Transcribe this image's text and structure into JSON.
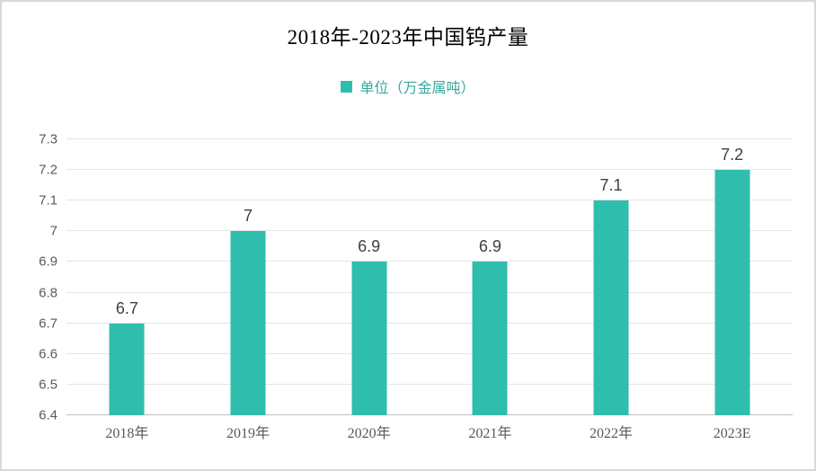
{
  "chart_data": {
    "type": "bar",
    "title": "2018年-2023年中国钨产量",
    "legend": [
      "单位（万金属吨）"
    ],
    "legend_position": "top",
    "categories": [
      "2018年",
      "2019年",
      "2020年",
      "2021年",
      "2022年",
      "2023E"
    ],
    "values": [
      6.7,
      7,
      6.9,
      6.9,
      7.1,
      7.2
    ],
    "value_labels": [
      "6.7",
      "7",
      "6.9",
      "6.9",
      "7.1",
      "7.2"
    ],
    "xlabel": "",
    "ylabel": "",
    "ylim": [
      6.4,
      7.3
    ],
    "ytick_step": 0.1,
    "yticks": [
      "6.4",
      "6.5",
      "6.6",
      "6.7",
      "6.8",
      "6.9",
      "7",
      "7.1",
      "7.2",
      "7.3"
    ],
    "grid": true,
    "colors": {
      "bar": "#2FBEAD",
      "legend_text": "#36A89E",
      "gridline": "#e4e4e4",
      "axis_line": "#bfbfbf",
      "value_label": "#404040",
      "tick_label": "#595959",
      "title": "#000000"
    }
  }
}
